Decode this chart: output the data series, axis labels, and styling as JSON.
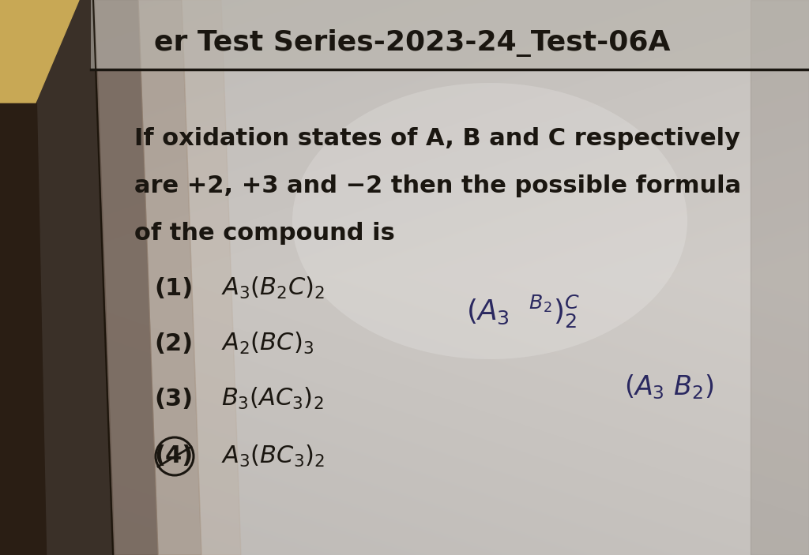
{
  "header_text": "er Test Series-2023-24_Test-06A",
  "q_line1": "If oxidation states of A, B and C respectively",
  "q_line2": "are +2, +3 and −2 then the possible formula",
  "q_line3": "of the compound is",
  "opt1_num": "(1)",
  "opt1_formula": "$A_3(B_2C)_2$",
  "opt2_num": "(2)",
  "opt2_formula": "$A_2(BC)_3$",
  "opt3_num": "(3)",
  "opt3_formula": "$B_3(AC_3)_2$",
  "opt4_num": "(4)",
  "opt4_formula": "$A_3(BC_3)_2$",
  "bg_paper": "#c8c4bc",
  "bg_left_dark": "#4a3c30",
  "bg_left_mid": "#6e5a48",
  "bg_left_light": "#9a8878",
  "text_dark": "#1a1610",
  "header_text_color": "#1a1610",
  "handwritten_color": "#2a2860",
  "header_fontsize": 26,
  "body_fontsize": 22,
  "option_fontsize": 22
}
